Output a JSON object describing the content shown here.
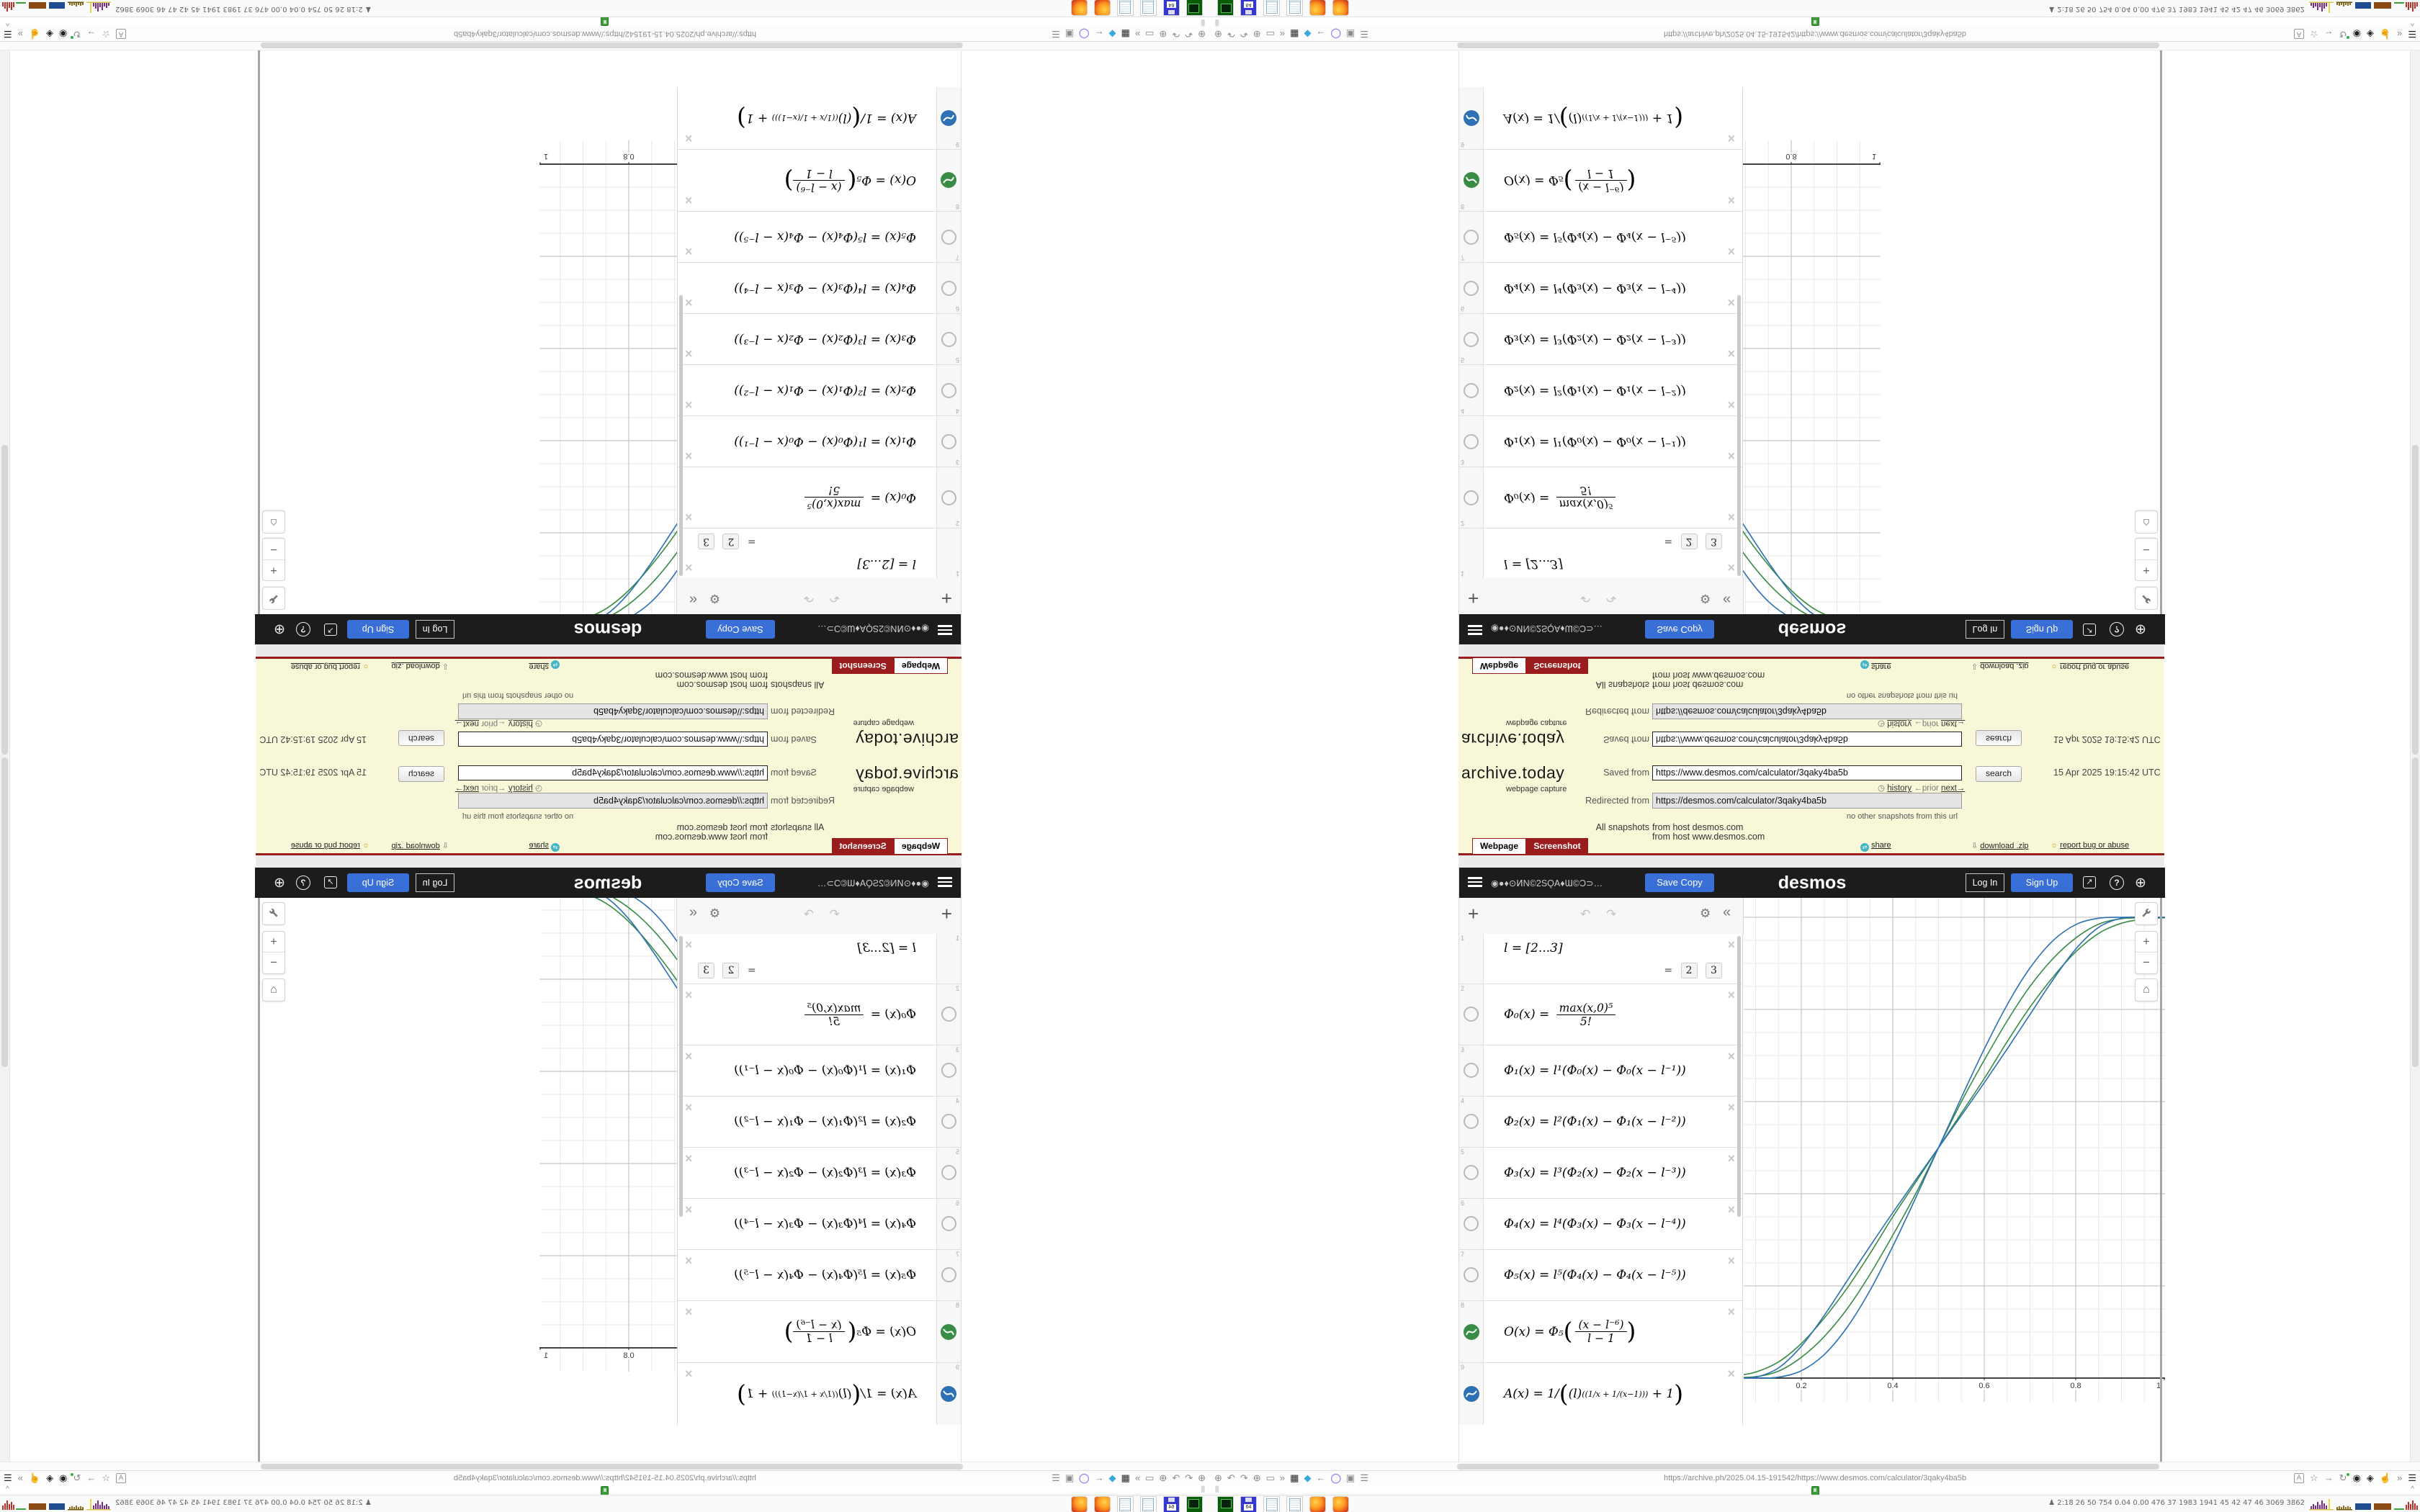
{
  "colors": {
    "archive_bg": "#f8f8d9",
    "archive_red": "#9a1c1c",
    "desmos_header": "#1c1c1c",
    "desmos_blue": "#3b6fd8",
    "curve_green": "#388c46",
    "curve_blue": "#2d70b3"
  },
  "archive": {
    "logo": "archive.today",
    "tagline": "webpage capture",
    "saved_label": "Saved from",
    "saved_url": "https://www.desmos.com/calculator/3qaky4ba5b",
    "search": "search",
    "timestamp": "15 Apr 2025 19:15:42 UTC",
    "history_icon": "◷",
    "history": "history",
    "prior": "←prior",
    "next": "next→",
    "redirected_label": "Redirected from",
    "redirected_url": "https://desmos.com/calculator/3qaky4ba5b",
    "none_note": "no other snapshots from this url",
    "all_label": "All snapshots",
    "host_a": "from host desmos.com",
    "host_b": "from host www.desmos.com",
    "tab_webpage": "Webpage",
    "tab_screenshot": "Screenshot",
    "share_icon": "⇄",
    "share": "share",
    "download_icon": "⇩",
    "download": "download .zip",
    "report_icon": "☼",
    "report": "report bug or abuse"
  },
  "desmos": {
    "header": {
      "title": "◉●♦⊙ͶN©2SǪA♦Ɯ©Ɔ⊃…",
      "save_copy": "Save Copy",
      "wordmark": "desmos",
      "login": "Log In",
      "signup": "Sign Up",
      "export_glyph": "↗",
      "help": "?",
      "globe_glyph": "⊕"
    },
    "toolbar": {
      "plus": "+",
      "undo": "↶",
      "redo": "↷",
      "gear": "⚙",
      "collapse": "«"
    },
    "rows": [
      {
        "num": "1",
        "text": "l = [2...3]",
        "result_eq": "=",
        "result_values": [
          "2",
          "3"
        ]
      },
      {
        "num": "2",
        "pre": "Φ₀(x) = ",
        "num_text": "max(x,0)⁵",
        "den_text": "5!"
      },
      {
        "num": "3",
        "text": "Φ₁(x) = l¹(Φ₀(x) − Φ₀(x − l⁻¹))"
      },
      {
        "num": "4",
        "text": "Φ₂(x) = l²(Φ₁(x) − Φ₁(x − l⁻²))"
      },
      {
        "num": "5",
        "text": "Φ₃(x) = l³(Φ₂(x) − Φ₂(x − l⁻³))"
      },
      {
        "num": "6",
        "text": "Φ₄(x) = l⁴(Φ₃(x) − Φ₃(x − l⁻⁴))"
      },
      {
        "num": "7",
        "text": "Φ₅(x) = l⁵(Φ₄(x) − Φ₄(x − l⁻⁵))"
      },
      {
        "num": "8",
        "pre": "O(x) = Φ₅",
        "paren_open": "(",
        "num_text": "(x − l⁻⁶)",
        "den_text": "l − 1",
        "paren_close": ")"
      },
      {
        "num": "9",
        "pre": "A(x) = 1/",
        "paren_open": "(",
        "base": "(l)",
        "sup": "((1/x + 1/(x−1)))",
        "post": " + 1",
        "paren_close": ")"
      }
    ],
    "delete_glyph": "×",
    "graph_tools": {
      "plus": "+",
      "minus": "−",
      "home": "⌂"
    }
  },
  "browser": {
    "url": "https://archive.ph/2025.04.15-191542/https://www.desmos.com/calculator/3qaky4ba5b",
    "nav_left": [
      "⊕",
      "↶",
      "↷",
      "⊕",
      "▭",
      "»"
    ],
    "trash": "▦",
    "kite": "◆",
    "back": "←",
    "shield": "◯",
    "lock": "▣",
    "sliders": "☰",
    "translate": "A",
    "star": "☆",
    "forward": "→",
    "reload": "↻",
    "globe": "◉",
    "badge": "◈",
    "thumb": "☝",
    "more": "»",
    "menu": "☰",
    "tab_left": "||",
    "caret": "^",
    "taskbar": {
      "floppy_label": "64",
      "person": "♟",
      "stats": "2:18  26  50  754 0.04 0.00 476  37  1983 1941  45  42  47  46 3069 3862"
    }
  },
  "chart_data": {
    "type": "line",
    "title": "",
    "xlabel": "",
    "ylabel": "",
    "x_range": [
      0.074,
      1.03
    ],
    "y_range": [
      -0.048,
      1.042
    ],
    "minor_step": 0.05,
    "major_step": 0.2,
    "grid": true,
    "legend": false,
    "x_ticks": [
      0.2,
      0.4,
      0.6,
      0.8,
      1.0
    ],
    "x_tick_labels": [
      "0.2",
      "0.4",
      "0.6",
      "0.8",
      "1"
    ],
    "series": [
      {
        "name": "O(x) l=2",
        "color": "#388c46",
        "points": [
          [
            0.05,
            0.004
          ],
          [
            0.1,
            0.013
          ],
          [
            0.15,
            0.035
          ],
          [
            0.2,
            0.075
          ],
          [
            0.25,
            0.13
          ],
          [
            0.3,
            0.195
          ],
          [
            0.35,
            0.27
          ],
          [
            0.4,
            0.35
          ],
          [
            0.45,
            0.425
          ],
          [
            0.5,
            0.5
          ],
          [
            0.55,
            0.575
          ],
          [
            0.6,
            0.65
          ],
          [
            0.65,
            0.73
          ],
          [
            0.7,
            0.805
          ],
          [
            0.75,
            0.87
          ],
          [
            0.8,
            0.925
          ],
          [
            0.85,
            0.965
          ],
          [
            0.9,
            0.987
          ],
          [
            0.95,
            0.996
          ],
          [
            1.0,
            0.999
          ],
          [
            1.03,
            1.0
          ]
        ]
      },
      {
        "name": "O(x) l=3",
        "color": "#388c46",
        "points": [
          [
            0.05,
            0.001
          ],
          [
            0.1,
            0.003
          ],
          [
            0.15,
            0.015
          ],
          [
            0.2,
            0.045
          ],
          [
            0.25,
            0.09
          ],
          [
            0.3,
            0.15
          ],
          [
            0.35,
            0.225
          ],
          [
            0.4,
            0.31
          ],
          [
            0.45,
            0.4
          ],
          [
            0.5,
            0.5
          ],
          [
            0.55,
            0.6
          ],
          [
            0.6,
            0.69
          ],
          [
            0.65,
            0.775
          ],
          [
            0.7,
            0.85
          ],
          [
            0.75,
            0.91
          ],
          [
            0.8,
            0.955
          ],
          [
            0.85,
            0.985
          ],
          [
            0.9,
            0.997
          ],
          [
            0.95,
            0.999
          ],
          [
            1.0,
            1.0
          ],
          [
            1.03,
            1.0
          ]
        ]
      },
      {
        "name": "A(x) l=2",
        "color": "#2d70b3",
        "points": [
          [
            0.05,
            0.0
          ],
          [
            0.1,
            0.002
          ],
          [
            0.15,
            0.022
          ],
          [
            0.2,
            0.069
          ],
          [
            0.25,
            0.136
          ],
          [
            0.3,
            0.211
          ],
          [
            0.35,
            0.286
          ],
          [
            0.4,
            0.359
          ],
          [
            0.45,
            0.43
          ],
          [
            0.5,
            0.5
          ],
          [
            0.55,
            0.57
          ],
          [
            0.6,
            0.641
          ],
          [
            0.65,
            0.714
          ],
          [
            0.7,
            0.789
          ],
          [
            0.75,
            0.864
          ],
          [
            0.8,
            0.931
          ],
          [
            0.85,
            0.978
          ],
          [
            0.9,
            0.998
          ],
          [
            0.95,
            1.0
          ],
          [
            1.0,
            1.0
          ],
          [
            1.03,
            1.0
          ]
        ]
      },
      {
        "name": "A(x) l=3",
        "color": "#2d70b3",
        "points": [
          [
            0.05,
            0.0
          ],
          [
            0.1,
            0.0
          ],
          [
            0.15,
            0.002
          ],
          [
            0.2,
            0.016
          ],
          [
            0.25,
            0.051
          ],
          [
            0.3,
            0.11
          ],
          [
            0.35,
            0.19
          ],
          [
            0.4,
            0.286
          ],
          [
            0.45,
            0.391
          ],
          [
            0.5,
            0.5
          ],
          [
            0.55,
            0.609
          ],
          [
            0.6,
            0.714
          ],
          [
            0.65,
            0.81
          ],
          [
            0.7,
            0.89
          ],
          [
            0.75,
            0.949
          ],
          [
            0.8,
            0.984
          ],
          [
            0.85,
            0.998
          ],
          [
            0.9,
            1.0
          ],
          [
            0.95,
            1.0
          ],
          [
            1.0,
            1.0
          ],
          [
            1.03,
            1.0
          ]
        ]
      }
    ]
  }
}
